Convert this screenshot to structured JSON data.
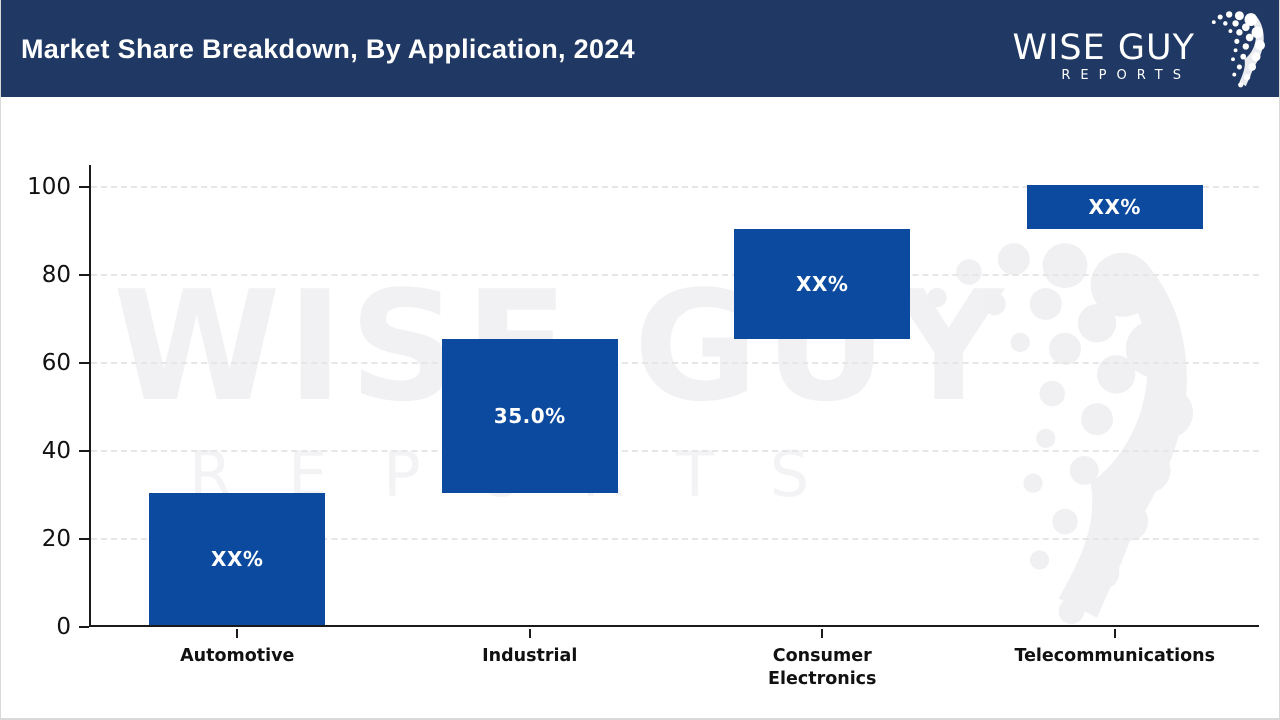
{
  "header": {
    "title": "Market Share Breakdown, By Application, 2024",
    "bg_color": "#1f3864",
    "logo": {
      "line1": "WISE GUY",
      "line2": "REPORTS"
    }
  },
  "watermark": {
    "line1": "WISE GUY",
    "line2": "REPORTS"
  },
  "chart_data": {
    "type": "bar",
    "subtype": "waterfall",
    "title": "Market Share Breakdown, By Application, 2024",
    "xlabel": "",
    "ylabel": "",
    "ylim": [
      0,
      100
    ],
    "yticks": [
      0,
      20,
      40,
      60,
      80,
      100
    ],
    "grid": "horizontal-dashed",
    "legend": "none",
    "bar_color": "#0b4a9e",
    "bar_label_color": "#ffffff",
    "categories": [
      "Automotive",
      "Industrial",
      "Consumer Electronics",
      "Telecommunications"
    ],
    "tick_labels": [
      "Automotive",
      "Industrial",
      "Consumer\nElectronics",
      "Telecommunications"
    ],
    "segments": [
      {
        "category": "Automotive",
        "start": 0,
        "end": 30,
        "value": 30,
        "label": "XX%"
      },
      {
        "category": "Industrial",
        "start": 30,
        "end": 65,
        "value": 35,
        "label": "35.0%"
      },
      {
        "category": "Consumer Electronics",
        "start": 65,
        "end": 90,
        "value": 25,
        "label": "XX%"
      },
      {
        "category": "Telecommunications",
        "start": 90,
        "end": 100,
        "value": 10,
        "label": "XX%"
      }
    ]
  }
}
